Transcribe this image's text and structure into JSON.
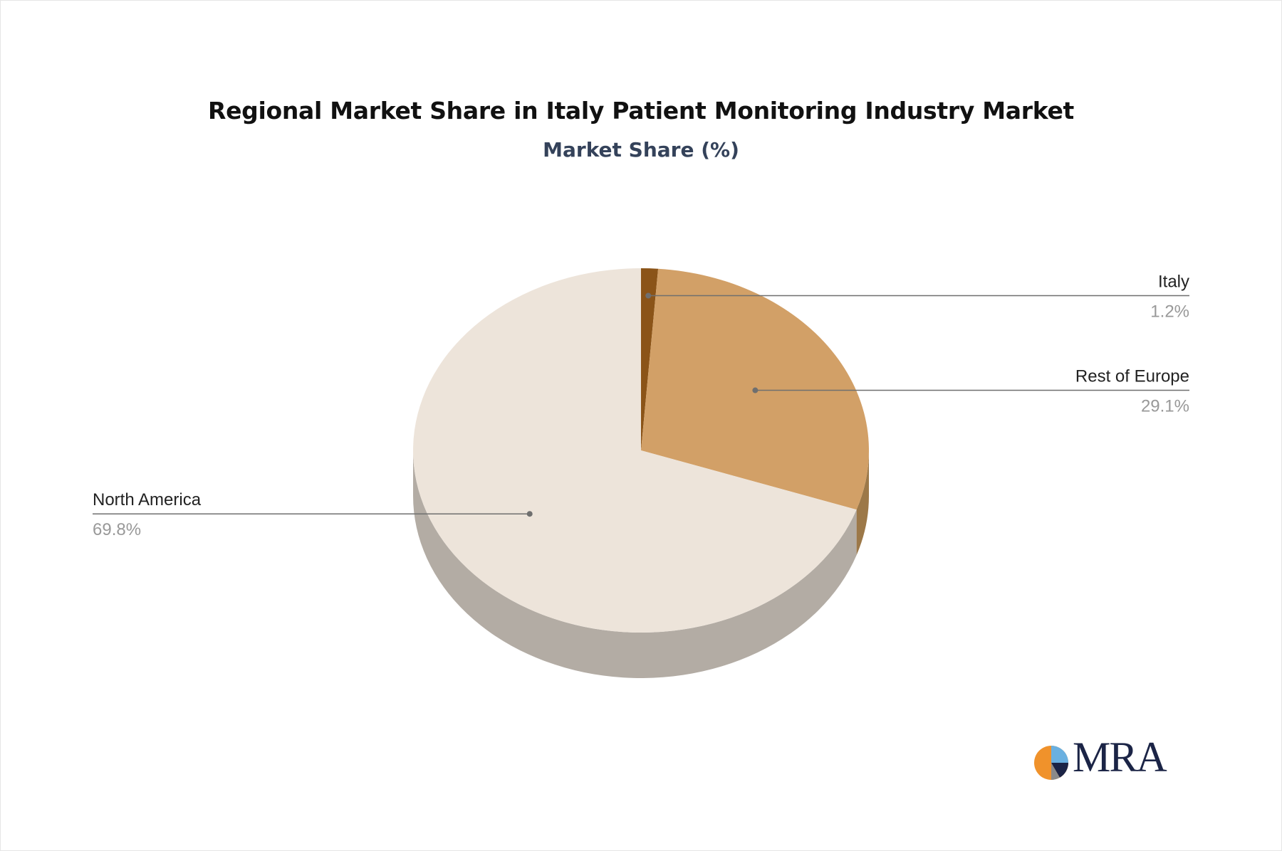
{
  "title": "Regional Market Share in Italy Patient Monitoring Industry Market",
  "subtitle": "Market Share (%)",
  "logo": {
    "text": "MRA",
    "colors": [
      "#f0922b",
      "#6ab0e0",
      "#1b2446",
      "#8a8a8a"
    ]
  },
  "chart_data": {
    "type": "pie",
    "style": "3d",
    "categories": [
      "Italy",
      "Rest of Europe",
      "North America"
    ],
    "values": [
      1.2,
      29.1,
      69.8
    ],
    "value_labels": [
      "1.2%",
      "29.1%",
      "69.8%"
    ],
    "colors": [
      "#8b5418",
      "#d2a067",
      "#ede4da"
    ],
    "side_colors": [
      "#5e3a12",
      "#9c7848",
      "#b3aca4"
    ],
    "start_angle_deg": 0
  }
}
